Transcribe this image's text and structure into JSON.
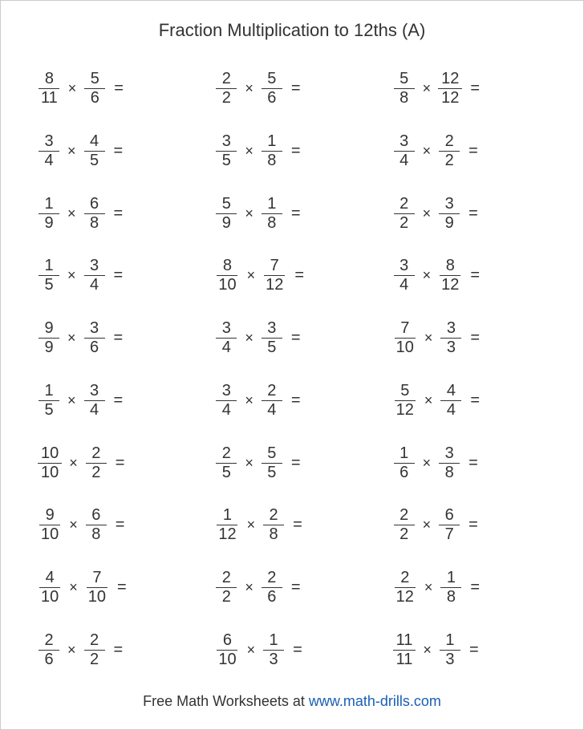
{
  "title": "Fraction Multiplication to 12ths (A)",
  "operator": "×",
  "equals": "=",
  "footer_prefix": "Free Math Worksheets at ",
  "footer_link_text": "www.math-drills.com",
  "text_color": "#333333",
  "link_color": "#1a5fb4",
  "background_color": "#ffffff",
  "title_fontsize": 22,
  "problem_fontsize": 20,
  "footer_fontsize": 18,
  "columns": 3,
  "rows": 10,
  "problems": [
    [
      {
        "n1": "8",
        "d1": "11",
        "n2": "5",
        "d2": "6"
      },
      {
        "n1": "2",
        "d1": "2",
        "n2": "5",
        "d2": "6"
      },
      {
        "n1": "5",
        "d1": "8",
        "n2": "12",
        "d2": "12"
      }
    ],
    [
      {
        "n1": "3",
        "d1": "4",
        "n2": "4",
        "d2": "5"
      },
      {
        "n1": "3",
        "d1": "5",
        "n2": "1",
        "d2": "8"
      },
      {
        "n1": "3",
        "d1": "4",
        "n2": "2",
        "d2": "2"
      }
    ],
    [
      {
        "n1": "1",
        "d1": "9",
        "n2": "6",
        "d2": "8"
      },
      {
        "n1": "5",
        "d1": "9",
        "n2": "1",
        "d2": "8"
      },
      {
        "n1": "2",
        "d1": "2",
        "n2": "3",
        "d2": "9"
      }
    ],
    [
      {
        "n1": "1",
        "d1": "5",
        "n2": "3",
        "d2": "4"
      },
      {
        "n1": "8",
        "d1": "10",
        "n2": "7",
        "d2": "12"
      },
      {
        "n1": "3",
        "d1": "4",
        "n2": "8",
        "d2": "12"
      }
    ],
    [
      {
        "n1": "9",
        "d1": "9",
        "n2": "3",
        "d2": "6"
      },
      {
        "n1": "3",
        "d1": "4",
        "n2": "3",
        "d2": "5"
      },
      {
        "n1": "7",
        "d1": "10",
        "n2": "3",
        "d2": "3"
      }
    ],
    [
      {
        "n1": "1",
        "d1": "5",
        "n2": "3",
        "d2": "4"
      },
      {
        "n1": "3",
        "d1": "4",
        "n2": "2",
        "d2": "4"
      },
      {
        "n1": "5",
        "d1": "12",
        "n2": "4",
        "d2": "4"
      }
    ],
    [
      {
        "n1": "10",
        "d1": "10",
        "n2": "2",
        "d2": "2"
      },
      {
        "n1": "2",
        "d1": "5",
        "n2": "5",
        "d2": "5"
      },
      {
        "n1": "1",
        "d1": "6",
        "n2": "3",
        "d2": "8"
      }
    ],
    [
      {
        "n1": "9",
        "d1": "10",
        "n2": "6",
        "d2": "8"
      },
      {
        "n1": "1",
        "d1": "12",
        "n2": "2",
        "d2": "8"
      },
      {
        "n1": "2",
        "d1": "2",
        "n2": "6",
        "d2": "7"
      }
    ],
    [
      {
        "n1": "4",
        "d1": "10",
        "n2": "7",
        "d2": "10"
      },
      {
        "n1": "2",
        "d1": "2",
        "n2": "2",
        "d2": "6"
      },
      {
        "n1": "2",
        "d1": "12",
        "n2": "1",
        "d2": "8"
      }
    ],
    [
      {
        "n1": "2",
        "d1": "6",
        "n2": "2",
        "d2": "2"
      },
      {
        "n1": "6",
        "d1": "10",
        "n2": "1",
        "d2": "3"
      },
      {
        "n1": "11",
        "d1": "11",
        "n2": "1",
        "d2": "3"
      }
    ]
  ]
}
